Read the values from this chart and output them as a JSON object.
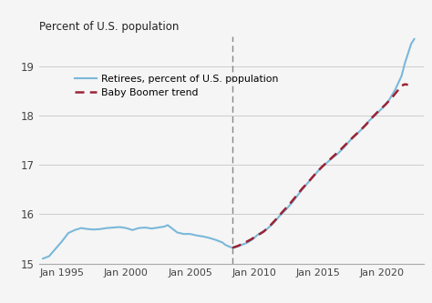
{
  "title": "Percent of U.S. population",
  "ylim": [
    15,
    19.6
  ],
  "yticks": [
    15,
    16,
    17,
    18,
    19
  ],
  "xlim_year": [
    1993.2,
    2023.2
  ],
  "xtick_years": [
    1995,
    2000,
    2005,
    2010,
    2015,
    2020
  ],
  "dashed_line_year": 2008.3,
  "line_color": "#7ab8d9",
  "trend_color": "#9b2335",
  "background_color": "#f5f5f5",
  "grid_color": "#cccccc",
  "legend_entries": [
    "Retirees, percent of U.S. population",
    "Baby Boomer trend"
  ],
  "retirees_data": [
    [
      1993.5,
      15.1
    ],
    [
      1994.0,
      15.15
    ],
    [
      1994.5,
      15.3
    ],
    [
      1995.0,
      15.45
    ],
    [
      1995.5,
      15.62
    ],
    [
      1996.0,
      15.68
    ],
    [
      1996.5,
      15.72
    ],
    [
      1997.0,
      15.7
    ],
    [
      1997.5,
      15.69
    ],
    [
      1998.0,
      15.7
    ],
    [
      1998.5,
      15.72
    ],
    [
      1999.0,
      15.73
    ],
    [
      1999.5,
      15.74
    ],
    [
      2000.0,
      15.72
    ],
    [
      2000.5,
      15.68
    ],
    [
      2001.0,
      15.72
    ],
    [
      2001.5,
      15.73
    ],
    [
      2002.0,
      15.71
    ],
    [
      2002.5,
      15.73
    ],
    [
      2003.0,
      15.75
    ],
    [
      2003.25,
      15.78
    ],
    [
      2003.5,
      15.73
    ],
    [
      2004.0,
      15.63
    ],
    [
      2004.5,
      15.6
    ],
    [
      2005.0,
      15.6
    ],
    [
      2005.5,
      15.57
    ],
    [
      2006.0,
      15.55
    ],
    [
      2006.5,
      15.52
    ],
    [
      2007.0,
      15.48
    ],
    [
      2007.5,
      15.43
    ],
    [
      2007.75,
      15.38
    ],
    [
      2008.0,
      15.35
    ],
    [
      2008.3,
      15.32
    ],
    [
      2008.5,
      15.33
    ],
    [
      2008.75,
      15.35
    ],
    [
      2009.0,
      15.38
    ],
    [
      2009.25,
      15.4
    ],
    [
      2009.5,
      15.43
    ],
    [
      2009.75,
      15.47
    ],
    [
      2010.0,
      15.52
    ],
    [
      2010.25,
      15.58
    ],
    [
      2010.5,
      15.62
    ],
    [
      2011.0,
      15.7
    ],
    [
      2011.5,
      15.82
    ],
    [
      2012.0,
      15.97
    ],
    [
      2012.5,
      16.1
    ],
    [
      2013.0,
      16.25
    ],
    [
      2013.5,
      16.42
    ],
    [
      2014.0,
      16.58
    ],
    [
      2014.5,
      16.73
    ],
    [
      2015.0,
      16.88
    ],
    [
      2015.5,
      17.0
    ],
    [
      2016.0,
      17.12
    ],
    [
      2016.5,
      17.22
    ],
    [
      2017.0,
      17.35
    ],
    [
      2017.5,
      17.5
    ],
    [
      2018.0,
      17.62
    ],
    [
      2018.5,
      17.75
    ],
    [
      2019.0,
      17.9
    ],
    [
      2019.5,
      18.02
    ],
    [
      2020.0,
      18.15
    ],
    [
      2020.5,
      18.3
    ],
    [
      2021.0,
      18.52
    ],
    [
      2021.5,
      18.8
    ],
    [
      2021.75,
      19.05
    ],
    [
      2022.0,
      19.25
    ],
    [
      2022.25,
      19.45
    ],
    [
      2022.5,
      19.55
    ]
  ],
  "trend_data": [
    [
      2008.3,
      15.32
    ],
    [
      2008.75,
      15.36
    ],
    [
      2009.25,
      15.42
    ],
    [
      2009.75,
      15.49
    ],
    [
      2010.25,
      15.57
    ],
    [
      2010.75,
      15.65
    ],
    [
      2011.25,
      15.77
    ],
    [
      2011.75,
      15.91
    ],
    [
      2012.25,
      16.06
    ],
    [
      2012.75,
      16.2
    ],
    [
      2013.25,
      16.36
    ],
    [
      2013.75,
      16.52
    ],
    [
      2014.25,
      16.66
    ],
    [
      2014.75,
      16.81
    ],
    [
      2015.25,
      16.95
    ],
    [
      2015.75,
      17.07
    ],
    [
      2016.25,
      17.19
    ],
    [
      2016.75,
      17.31
    ],
    [
      2017.25,
      17.44
    ],
    [
      2017.75,
      17.57
    ],
    [
      2018.25,
      17.69
    ],
    [
      2018.75,
      17.82
    ],
    [
      2019.25,
      17.97
    ],
    [
      2019.75,
      18.1
    ],
    [
      2020.25,
      18.22
    ],
    [
      2020.75,
      18.36
    ],
    [
      2021.25,
      18.52
    ],
    [
      2021.5,
      18.6
    ],
    [
      2021.75,
      18.63
    ],
    [
      2022.0,
      18.62
    ]
  ]
}
